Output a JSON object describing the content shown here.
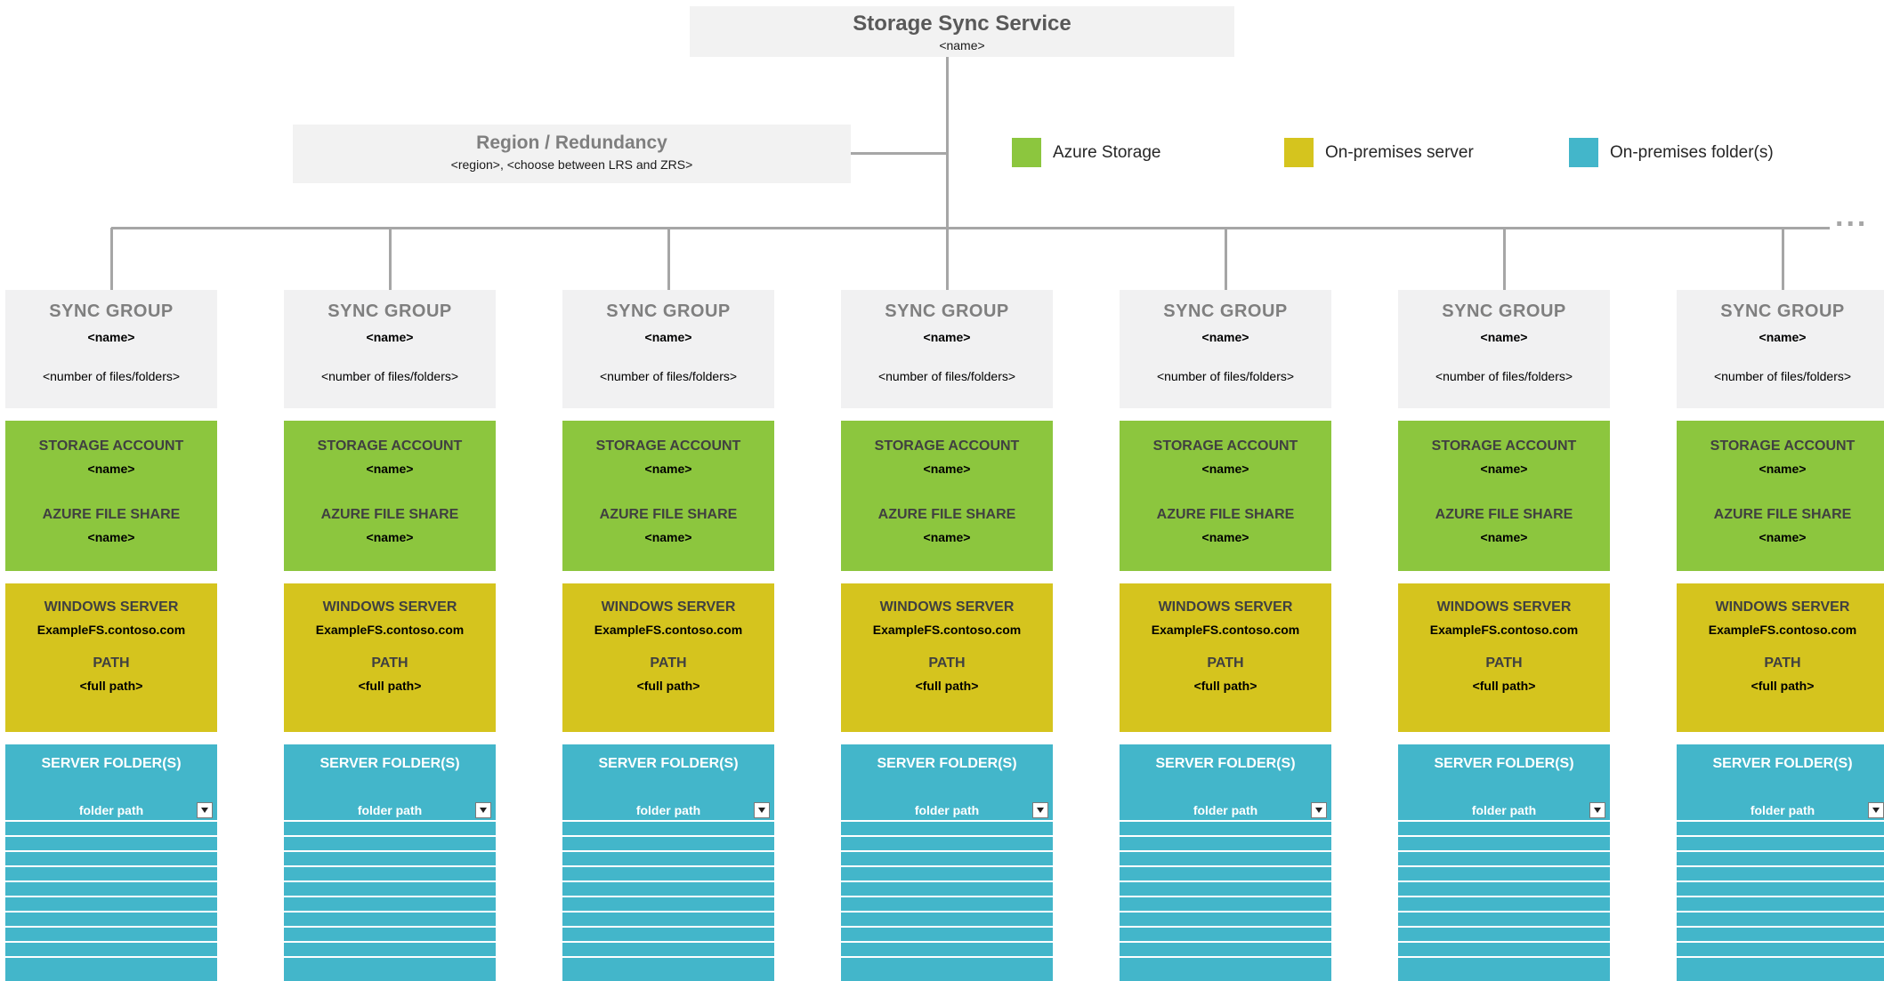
{
  "diagram": {
    "root": {
      "title": "Storage Sync Service",
      "subtitle": "<name>"
    },
    "region": {
      "title": "Region / Redundancy",
      "subtitle": "<region>, <choose between LRS and ZRS>"
    },
    "legend": [
      {
        "label": "Azure Storage",
        "color": "#8cc63e"
      },
      {
        "label": "On-premises server",
        "color": "#d5c41e"
      },
      {
        "label": "On-premises folder(s)",
        "color": "#43b6ca"
      }
    ],
    "ellipsis": "...",
    "column_count": 7,
    "column": {
      "sync_group": {
        "title": "SYNC GROUP",
        "name": "<name>",
        "count": "<number of files/folders>"
      },
      "storage": {
        "account_label": "STORAGE ACCOUNT",
        "account_name": "<name>",
        "share_label": "AZURE FILE SHARE",
        "share_name": "<name>"
      },
      "server": {
        "label": "WINDOWS SERVER",
        "hostname": "ExampleFS.contoso.com",
        "path_label": "PATH",
        "path_value": "<full path>"
      },
      "folders": {
        "label": "SERVER FOLDER(S)",
        "path_value": "folder path",
        "empty_row_count": 10
      }
    },
    "colors": {
      "connector": "#a6a6a6",
      "node_background": "#f2f2f2"
    }
  }
}
